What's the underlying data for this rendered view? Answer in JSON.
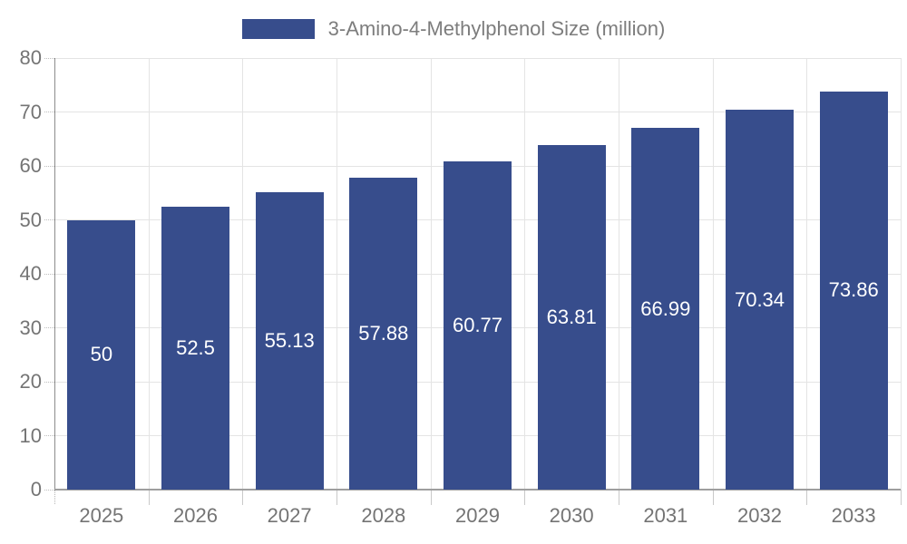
{
  "legend": {
    "series_label": "3-Amino-4-Methylphenol Size (million)"
  },
  "chart_data": {
    "type": "bar",
    "title": "3-Amino-4-Methylphenol Size (million)",
    "categories": [
      "2025",
      "2026",
      "2027",
      "2028",
      "2029",
      "2030",
      "2031",
      "2032",
      "2033"
    ],
    "values": [
      50,
      52.5,
      55.13,
      57.88,
      60.77,
      63.81,
      66.99,
      70.34,
      73.86
    ],
    "value_labels": [
      "50",
      "52.5",
      "55.13",
      "57.88",
      "60.77",
      "63.81",
      "66.99",
      "70.34",
      "73.86"
    ],
    "xlabel": "",
    "ylabel": "",
    "ylim": [
      0,
      80
    ],
    "ytick_interval": 10,
    "ytick_labels": [
      "0",
      "10",
      "20",
      "30",
      "40",
      "50",
      "60",
      "70",
      "80"
    ],
    "grid": true,
    "legend_position": "top-center",
    "colors": {
      "bar": "#374D8C",
      "grid": "#e4e4e4",
      "axis": "#9e9e9e",
      "tick_text": "#747474",
      "legend_text": "#7d7d7d",
      "value_label": "#ffffff",
      "background": "#ffffff"
    }
  }
}
